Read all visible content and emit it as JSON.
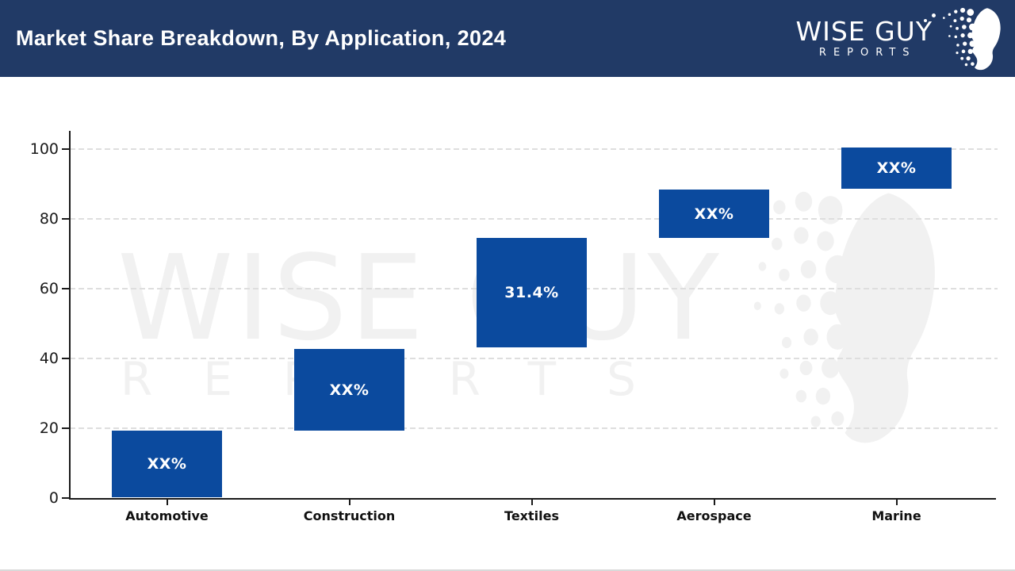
{
  "header": {
    "title": "Market Share Breakdown, By Application, 2024",
    "bg_color": "#213a66",
    "text_color": "#ffffff"
  },
  "brand": {
    "line1": "WISE GUY",
    "line2": "REPORTS"
  },
  "watermark": {
    "line1": "WISE GUY",
    "line2": "REPORTS",
    "color": "#f1f1f1"
  },
  "chart_data": {
    "type": "bar",
    "subtype": "waterfall",
    "title": "Market Share Breakdown, By Application, 2024",
    "categories": [
      "Automotive",
      "Construction",
      "Textiles",
      "Aerospace",
      "Marine"
    ],
    "series": [
      {
        "name": "Market Share",
        "segments": [
          {
            "category": "Automotive",
            "start": 0,
            "end": 19.1,
            "label": "XX%"
          },
          {
            "category": "Construction",
            "start": 19.1,
            "end": 42.7,
            "label": "XX%"
          },
          {
            "category": "Textiles",
            "start": 43.0,
            "end": 74.4,
            "label": "31.4%"
          },
          {
            "category": "Aerospace",
            "start": 74.4,
            "end": 88.2,
            "label": "XX%"
          },
          {
            "category": "Marine",
            "start": 88.5,
            "end": 100.3,
            "label": "XX%"
          }
        ]
      }
    ],
    "yticks": [
      0,
      20,
      40,
      60,
      80,
      100
    ],
    "ylim": [
      0,
      105
    ],
    "xlabel": "",
    "ylabel": "",
    "grid": "dashed horizontal",
    "legend": "none",
    "bar_color": "#0b4a9e",
    "bar_label_color": "#ffffff",
    "axis_color": "#1a1a1a",
    "grid_color": "#dedede"
  }
}
